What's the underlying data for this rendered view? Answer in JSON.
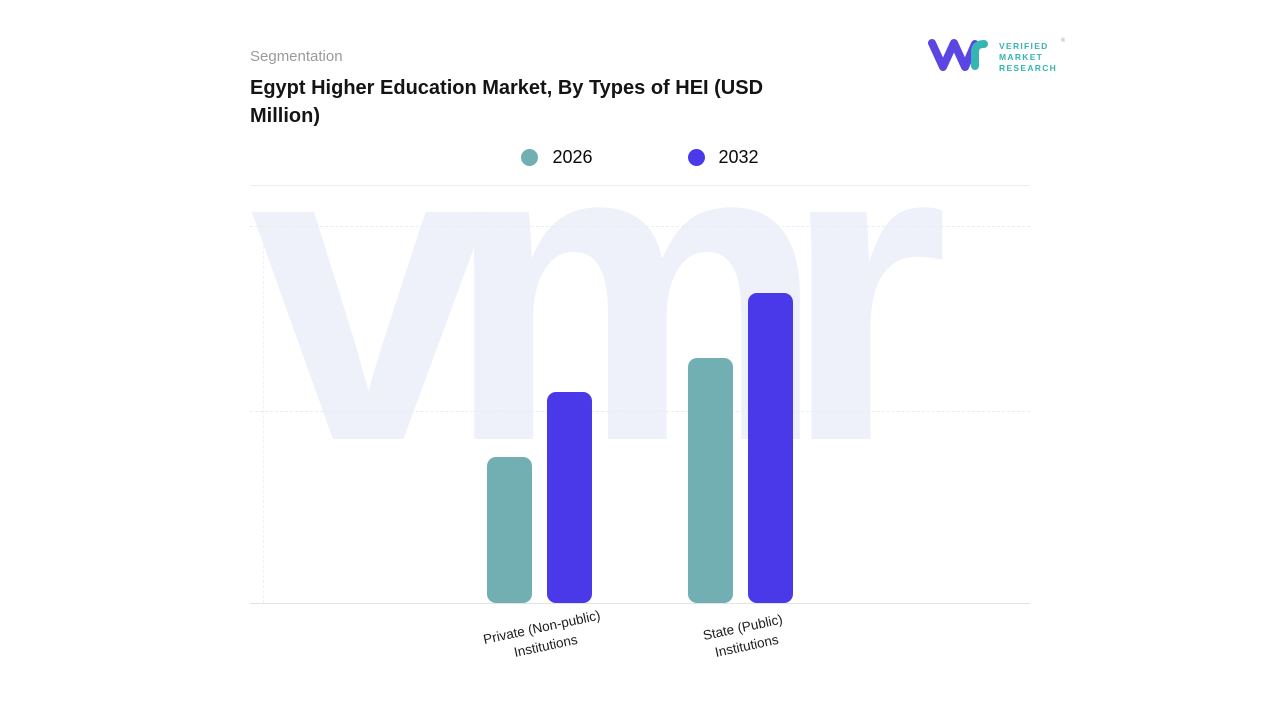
{
  "header": {
    "eyebrow": "Segmentation",
    "title_line1": "Egypt Higher Education Market, By Types of HEI (USD",
    "title_line2": "Million)"
  },
  "logo": {
    "lines": [
      "VERIFIED",
      "MARKET",
      "RESEARCH"
    ],
    "registered": "®"
  },
  "legend": [
    {
      "label": "2026",
      "color": "#72AFB3"
    },
    {
      "label": "2032",
      "color": "#4A39E8"
    }
  ],
  "watermark": "vmr",
  "chart": {
    "axis_label_lines": [
      [
        "Private (Non-public)",
        "Institutions"
      ],
      [
        "State (Public)",
        "Institutions"
      ]
    ]
  },
  "chart_data": {
    "type": "bar",
    "title": "Egypt Higher Education Market, By Types of HEI (USD Million)",
    "categories": [
      "Private (Non-public) Institutions",
      "State (Public) Institutions"
    ],
    "series": [
      {
        "name": "2026",
        "color": "#72AFB3",
        "values": [
          47,
          79
        ]
      },
      {
        "name": "2032",
        "color": "#4A39E8",
        "values": [
          68,
          100
        ]
      }
    ],
    "xlabel": "",
    "ylabel": "USD Million",
    "ylim": [
      0,
      100
    ],
    "value_labels_visible": false,
    "grid": "horizontal-dashed",
    "legend_position": "top-center"
  }
}
